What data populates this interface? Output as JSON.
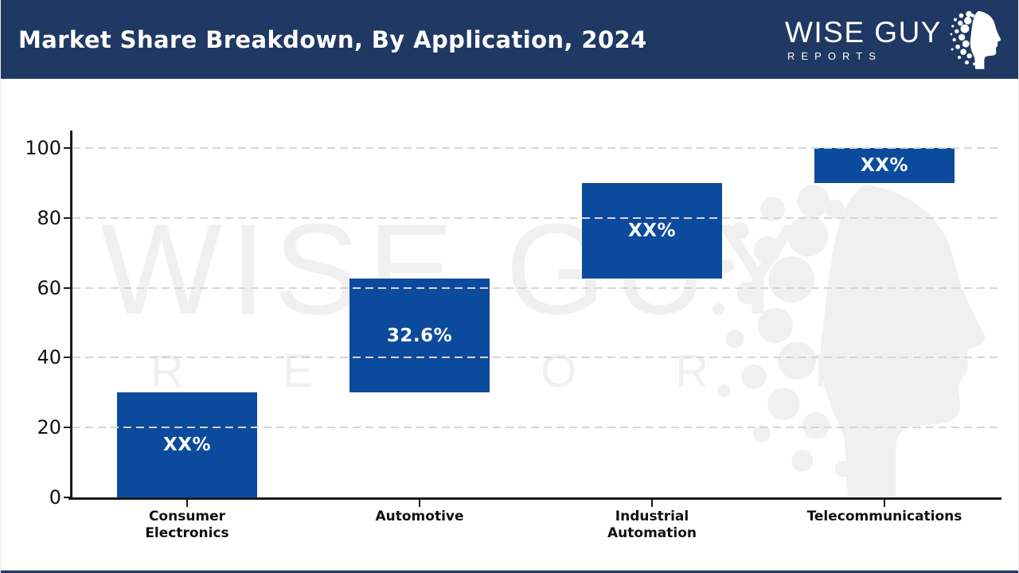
{
  "header": {
    "title": "Market Share Breakdown, By Application, 2024",
    "logo": {
      "line1": "WISE GUY",
      "line2": "REPORTS"
    }
  },
  "watermark": {
    "line1": "WISE GUY",
    "line2": "R E P O R T S"
  },
  "chart_data": {
    "type": "bar",
    "subtype": "floating-segment-waterfall",
    "title": "Market Share Breakdown, By Application, 2024",
    "categories": [
      "Consumer Electronics",
      "Automotive",
      "Industrial Automation",
      "Telecommunications"
    ],
    "series": [
      {
        "name": "Market Share (%)",
        "segments": [
          {
            "category": "Consumer Electronics",
            "start": 0,
            "end": 30,
            "label": "XX%"
          },
          {
            "category": "Automotive",
            "start": 30,
            "end": 62.6,
            "label": "32.6%"
          },
          {
            "category": "Industrial Automation",
            "start": 62.6,
            "end": 90,
            "label": "XX%"
          },
          {
            "category": "Telecommunications",
            "start": 90,
            "end": 100,
            "label": "XX%"
          }
        ]
      }
    ],
    "xlabel": "",
    "ylabel": "",
    "yticks": [
      0,
      20,
      40,
      60,
      80,
      100
    ],
    "ylim": [
      0,
      105
    ],
    "grid": "horizontal-dashed",
    "legend": "none"
  },
  "colors": {
    "header_navy": "#203864",
    "bar_blue": "#0c4a9e",
    "grid_gray": "#d6d6d6",
    "axis_black": "#1a1a1a",
    "watermark_gray": "#f0f0f0",
    "bar_label_white": "#ffffff"
  }
}
